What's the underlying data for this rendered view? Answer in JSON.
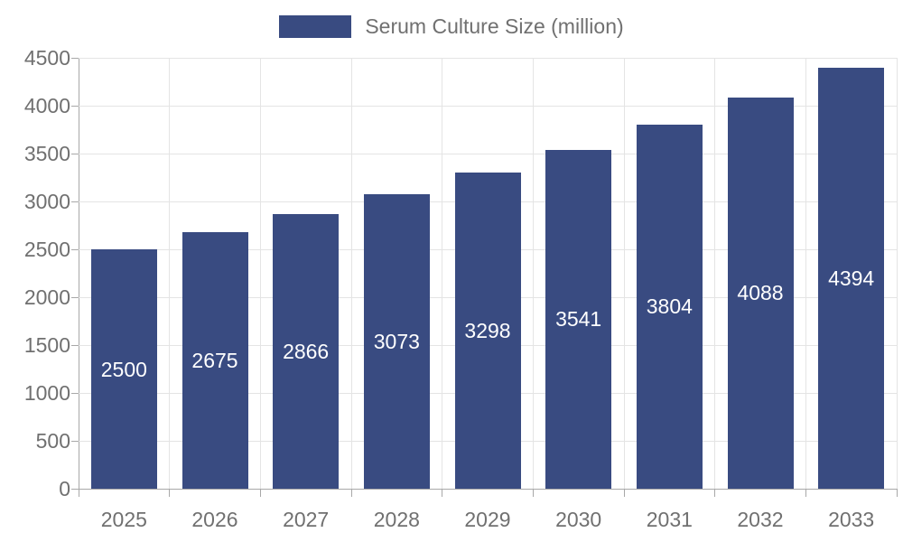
{
  "legend": {
    "label": "Serum Culture Size (million)"
  },
  "colors": {
    "bar": "#394b81",
    "axis_line": "#a8a8a8",
    "grid_line": "#e4e4e4",
    "tick_label": "#707070",
    "value_label": "#ffffff",
    "background": "#ffffff"
  },
  "chart_data": {
    "type": "bar",
    "title": "",
    "xlabel": "",
    "ylabel": "",
    "categories": [
      "2025",
      "2026",
      "2027",
      "2028",
      "2029",
      "2030",
      "2031",
      "2032",
      "2033"
    ],
    "series": [
      {
        "name": "Serum Culture Size (million)",
        "values": [
          2500,
          2675,
          2866,
          3073,
          3298,
          3541,
          3804,
          4088,
          4394
        ]
      }
    ],
    "ylim": [
      0,
      4500
    ],
    "ytick_step": 500,
    "ytick_labels": [
      "0",
      "500",
      "1000",
      "1500",
      "2000",
      "2500",
      "3000",
      "3500",
      "4000",
      "4500"
    ],
    "grid": true,
    "legend_position": "top-center",
    "value_labels": "inside-center"
  }
}
